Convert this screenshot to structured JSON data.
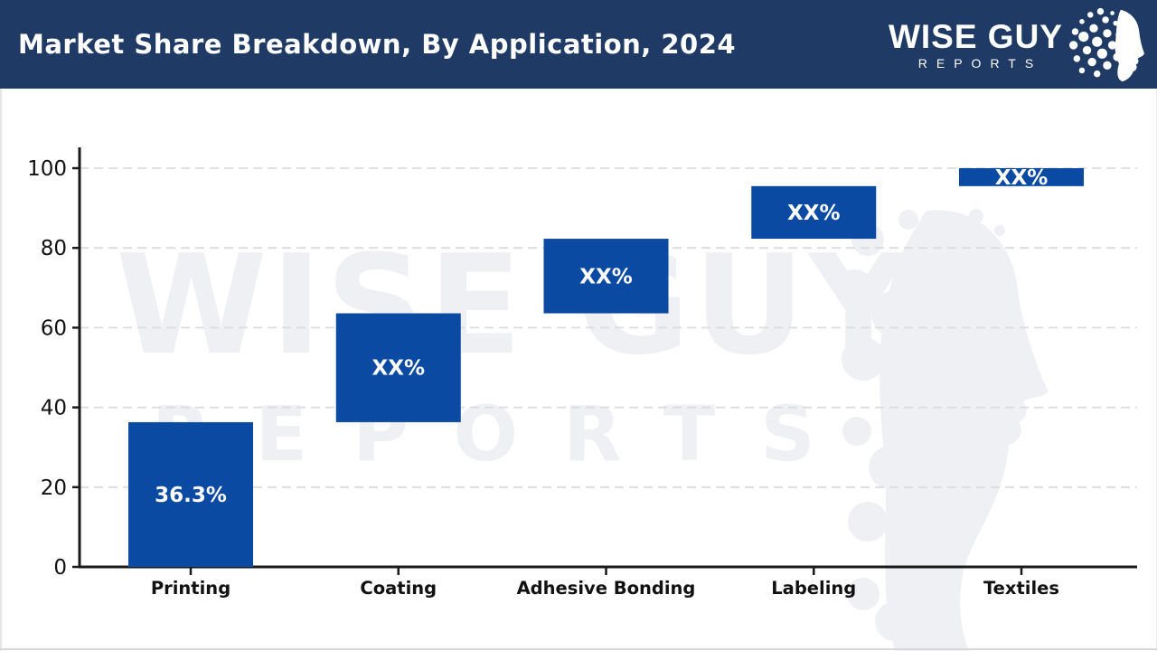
{
  "header": {
    "title": "Market Share Breakdown, By Application, 2024",
    "logo": {
      "name_line": "WISE GUY",
      "sub_line": "REPORTS"
    }
  },
  "watermark": {
    "line1": "WISE GUY",
    "line2": "REPORTS"
  },
  "chart_data": {
    "type": "bar",
    "subtype": "waterfall-segments",
    "title": "Market Share Breakdown, By Application, 2024",
    "categories": [
      "Printing",
      "Coating",
      "Adhesive Bonding",
      "Labeling",
      "Textiles"
    ],
    "series": [
      {
        "name": "Market share (%)",
        "segments": [
          {
            "category": "Printing",
            "start": 0,
            "end": 36.3,
            "label": "36.3%"
          },
          {
            "category": "Coating",
            "start": 36.3,
            "end": 63.6,
            "label": "XX%"
          },
          {
            "category": "Adhesive Bonding",
            "start": 63.6,
            "end": 82.3,
            "label": "XX%"
          },
          {
            "category": "Labeling",
            "start": 82.3,
            "end": 95.5,
            "label": "XX%"
          },
          {
            "category": "Textiles",
            "start": 95.5,
            "end": 100,
            "label": "XX%"
          }
        ]
      }
    ],
    "ylim": [
      0,
      100
    ],
    "yticks": [
      0,
      20,
      40,
      60,
      80,
      100
    ],
    "grid": "dashed-horizontal",
    "legend": "none",
    "colors": {
      "bar": "#0b4aa2",
      "bar_label": "#ffffff",
      "axis": "#1a1a1a",
      "gridline": "#dcdcdc",
      "tick_label": "#111111",
      "header_bg": "#203a66",
      "watermark": "#eef0f4"
    }
  }
}
